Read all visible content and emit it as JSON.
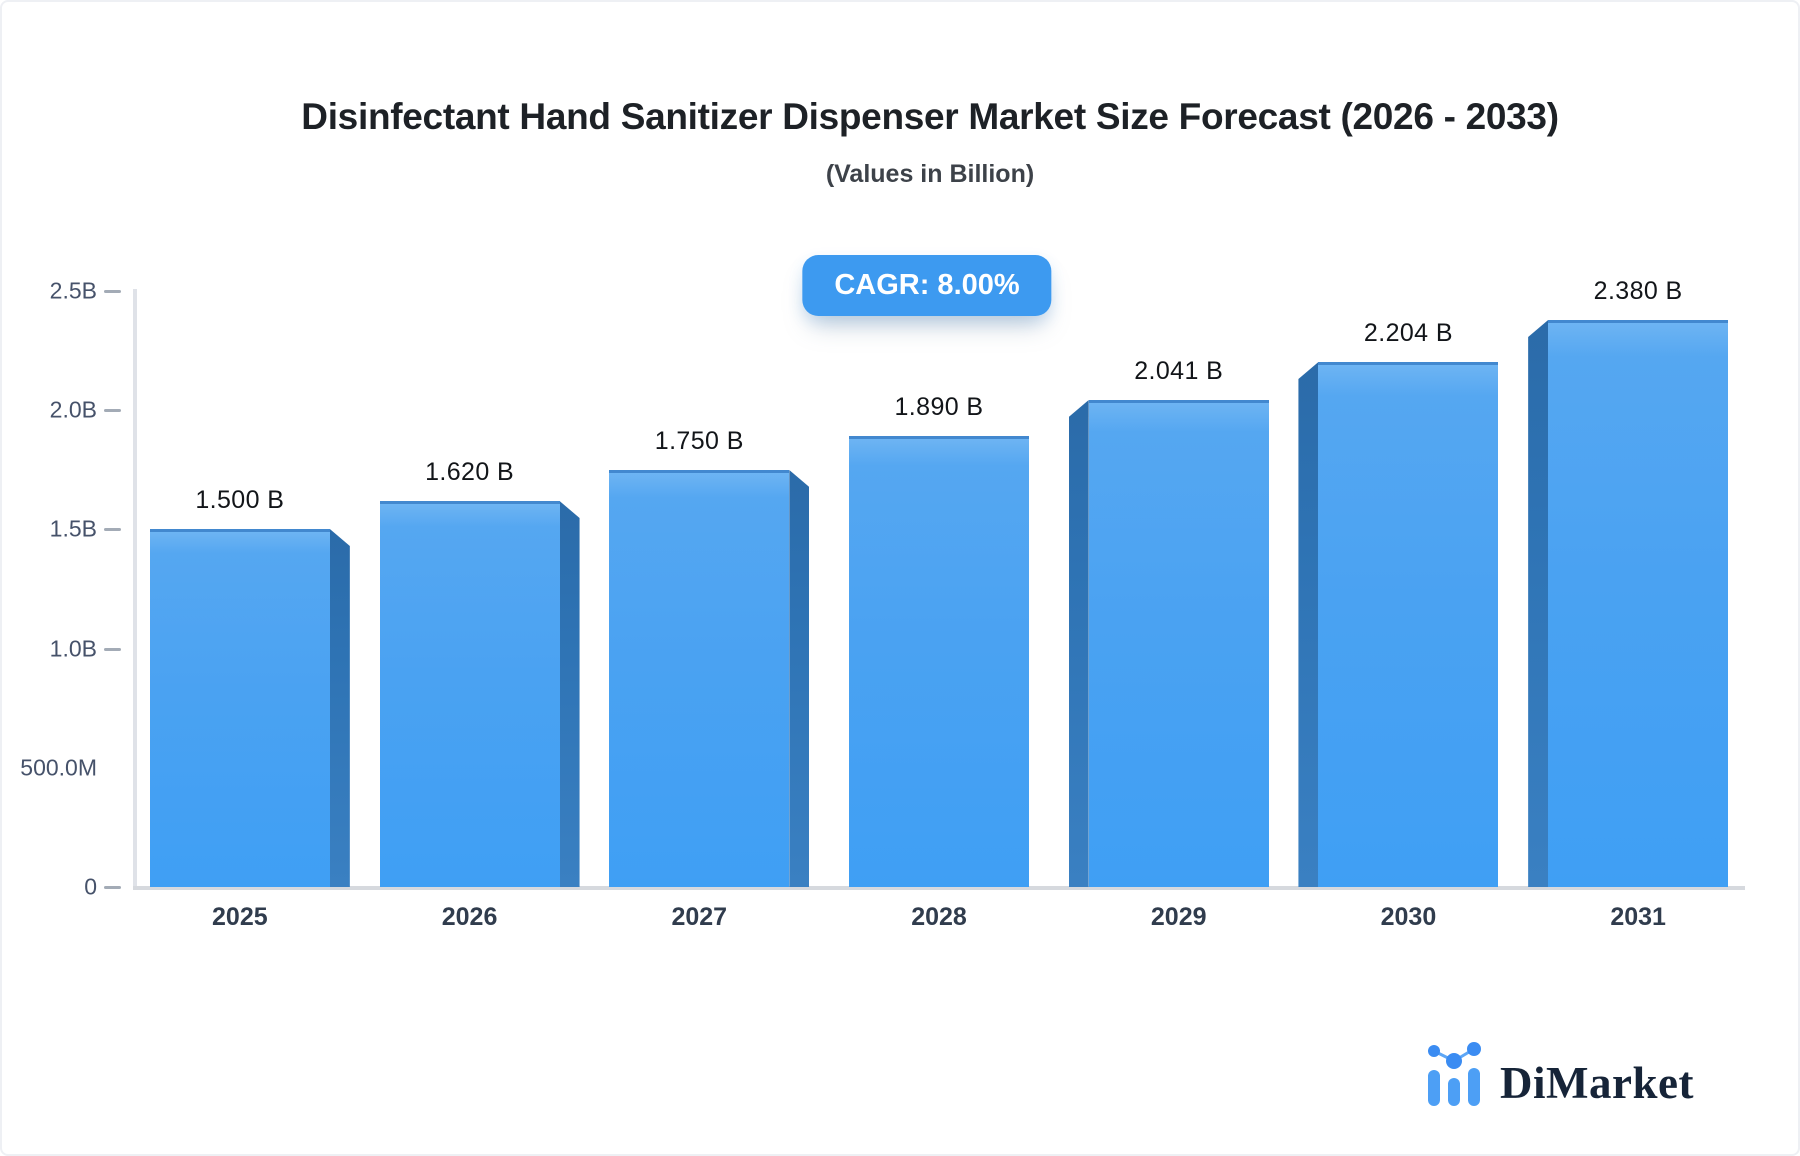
{
  "title": "Disinfectant Hand Sanitizer Dispenser Market Size Forecast (2026 - 2033)",
  "subtitle": "(Values in Billion)",
  "badge": {
    "label": "CAGR: 8.00%",
    "bg_color": "#3d9af0",
    "text_color": "#ffffff"
  },
  "chart_data": {
    "type": "bar",
    "categories": [
      "2025",
      "2026",
      "2027",
      "2028",
      "2029",
      "2030",
      "2031"
    ],
    "values": [
      1.5,
      1.62,
      1.75,
      1.89,
      2.041,
      2.204,
      2.38
    ],
    "value_labels": [
      "1.500 B",
      "1.620 B",
      "1.750 B",
      "1.890 B",
      "2.041 B",
      "2.204 B",
      "2.380 B"
    ],
    "title": "Disinfectant Hand Sanitizer Dispenser Market Size Forecast (2026 - 2033)",
    "xlabel": "",
    "ylabel": "",
    "ylim": [
      0,
      2.5
    ],
    "y_ticks": [
      {
        "label": "0",
        "value": 0.0,
        "dash": true
      },
      {
        "label": "500.0M",
        "value": 0.5,
        "dash": false
      },
      {
        "label": "1.0B",
        "value": 1.0,
        "dash": true
      },
      {
        "label": "1.5B",
        "value": 1.5,
        "dash": true
      },
      {
        "label": "2.0B",
        "value": 2.0,
        "dash": true
      },
      {
        "label": "2.5B",
        "value": 2.5,
        "dash": true
      }
    ],
    "grid": false,
    "legend": "none",
    "bar_face_color": "#4aa2f2",
    "bar_side_color": "#2e73b4",
    "bar_style": "3d-beveled, side face toward chart center"
  },
  "logo": {
    "text": "DiMarket",
    "icon": "bar-chart-logo-icon",
    "icon_bar_color": "#4d9ff5",
    "icon_dot_color": "#3b8cf2",
    "text_color": "#162438"
  }
}
